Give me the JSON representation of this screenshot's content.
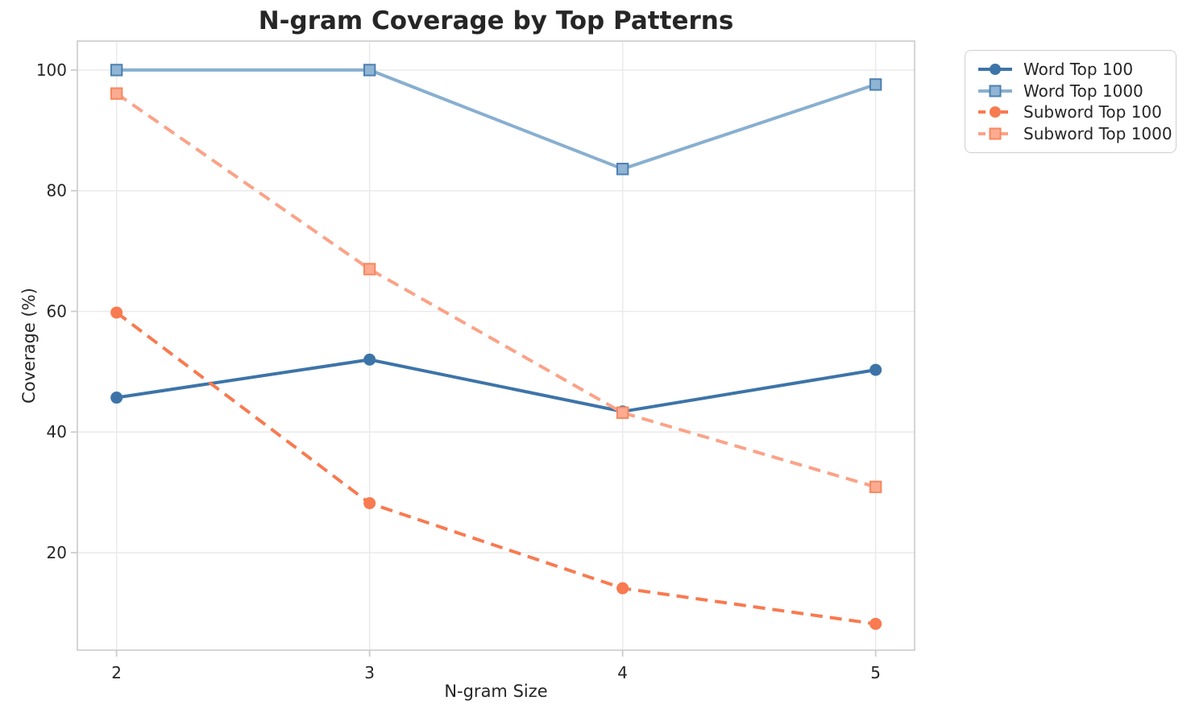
{
  "chart_data": {
    "type": "line",
    "title": "N-gram Coverage by Top Patterns",
    "xlabel": "N-gram Size",
    "ylabel": "Coverage (%)",
    "x": [
      2,
      3,
      4,
      5
    ],
    "xticks": [
      2,
      3,
      4,
      5
    ],
    "yticks": [
      20,
      40,
      60,
      80,
      100
    ],
    "xlim": [
      1.845,
      5.154
    ],
    "ylim": [
      3.84,
      104.8
    ],
    "grid": true,
    "legend_position": "outside-top-right",
    "series": [
      {
        "name": "Word Top 100",
        "values": [
          45.7,
          52.0,
          43.4,
          50.3
        ],
        "color": "#3d74a8",
        "marker": "circle",
        "marker_fill": "#3d74a8",
        "marker_edge": "#3d74a8",
        "dash": "solid"
      },
      {
        "name": "Word Top 1000",
        "values": [
          100.0,
          100.0,
          83.6,
          97.6
        ],
        "color": "#88afd0",
        "marker": "square",
        "marker_fill": "#8fb4d4",
        "marker_edge": "#4d81b1",
        "dash": "solid"
      },
      {
        "name": "Subword Top 100",
        "values": [
          59.8,
          28.2,
          14.1,
          8.2
        ],
        "color": "#f87a50",
        "marker": "circle",
        "marker_fill": "#f87a50",
        "marker_edge": "#f87a50",
        "dash": "dashed"
      },
      {
        "name": "Subword Top 1000",
        "values": [
          96.1,
          67.0,
          43.2,
          30.9
        ],
        "color": "#fba287",
        "marker": "square",
        "marker_fill": "#fcab91",
        "marker_edge": "#f8875f",
        "dash": "dashed"
      }
    ]
  },
  "style": {
    "text_color": "#262626",
    "grid_color": "#eaeaea",
    "spine_color": "#d5d5d5",
    "tick_color": "#cccccc",
    "background": "#ffffff"
  }
}
